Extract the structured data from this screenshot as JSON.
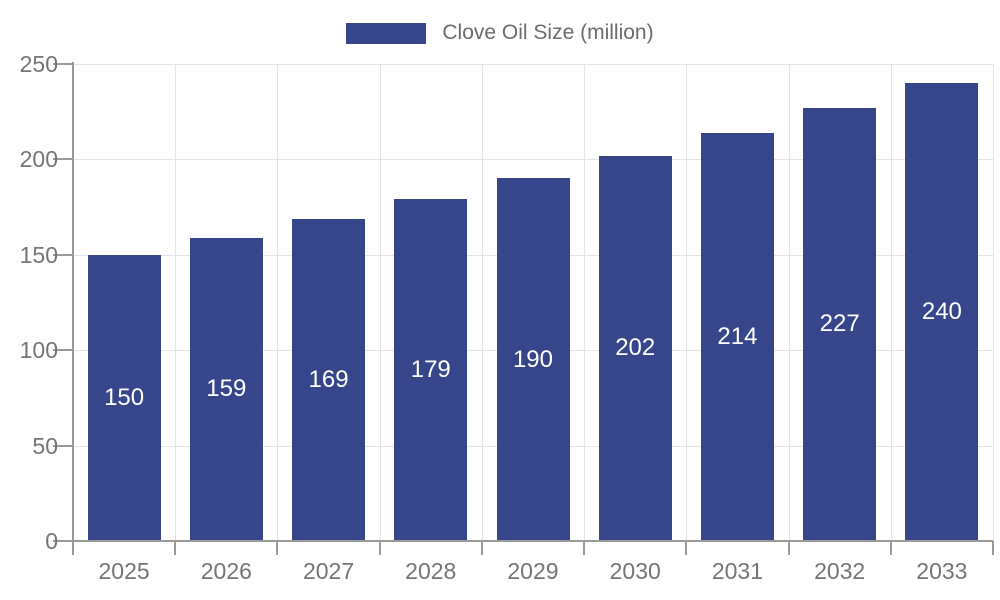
{
  "legend": {
    "label": "Clove Oil Size (million)"
  },
  "colors": {
    "bar": "#37468B",
    "grid": "#e3e3e9",
    "axis": "#9a9a9a",
    "tick_label": "#757575",
    "legend_label": "#6b6b6b",
    "bar_label": "#ffffff",
    "background": "#ffffff"
  },
  "chart_data": {
    "type": "bar",
    "title": "",
    "categories": [
      "2025",
      "2026",
      "2027",
      "2028",
      "2029",
      "2030",
      "2031",
      "2032",
      "2033"
    ],
    "series": [
      {
        "name": "Clove Oil Size (million)",
        "values": [
          150,
          159,
          169,
          179,
          190,
          202,
          214,
          227,
          240
        ]
      }
    ],
    "xlabel": "",
    "ylabel": "",
    "ylim": [
      0,
      250
    ],
    "yticks": [
      0,
      50,
      100,
      150,
      200,
      250
    ],
    "grid": true,
    "legend_position": "top-center",
    "value_labels": "inside-center"
  }
}
